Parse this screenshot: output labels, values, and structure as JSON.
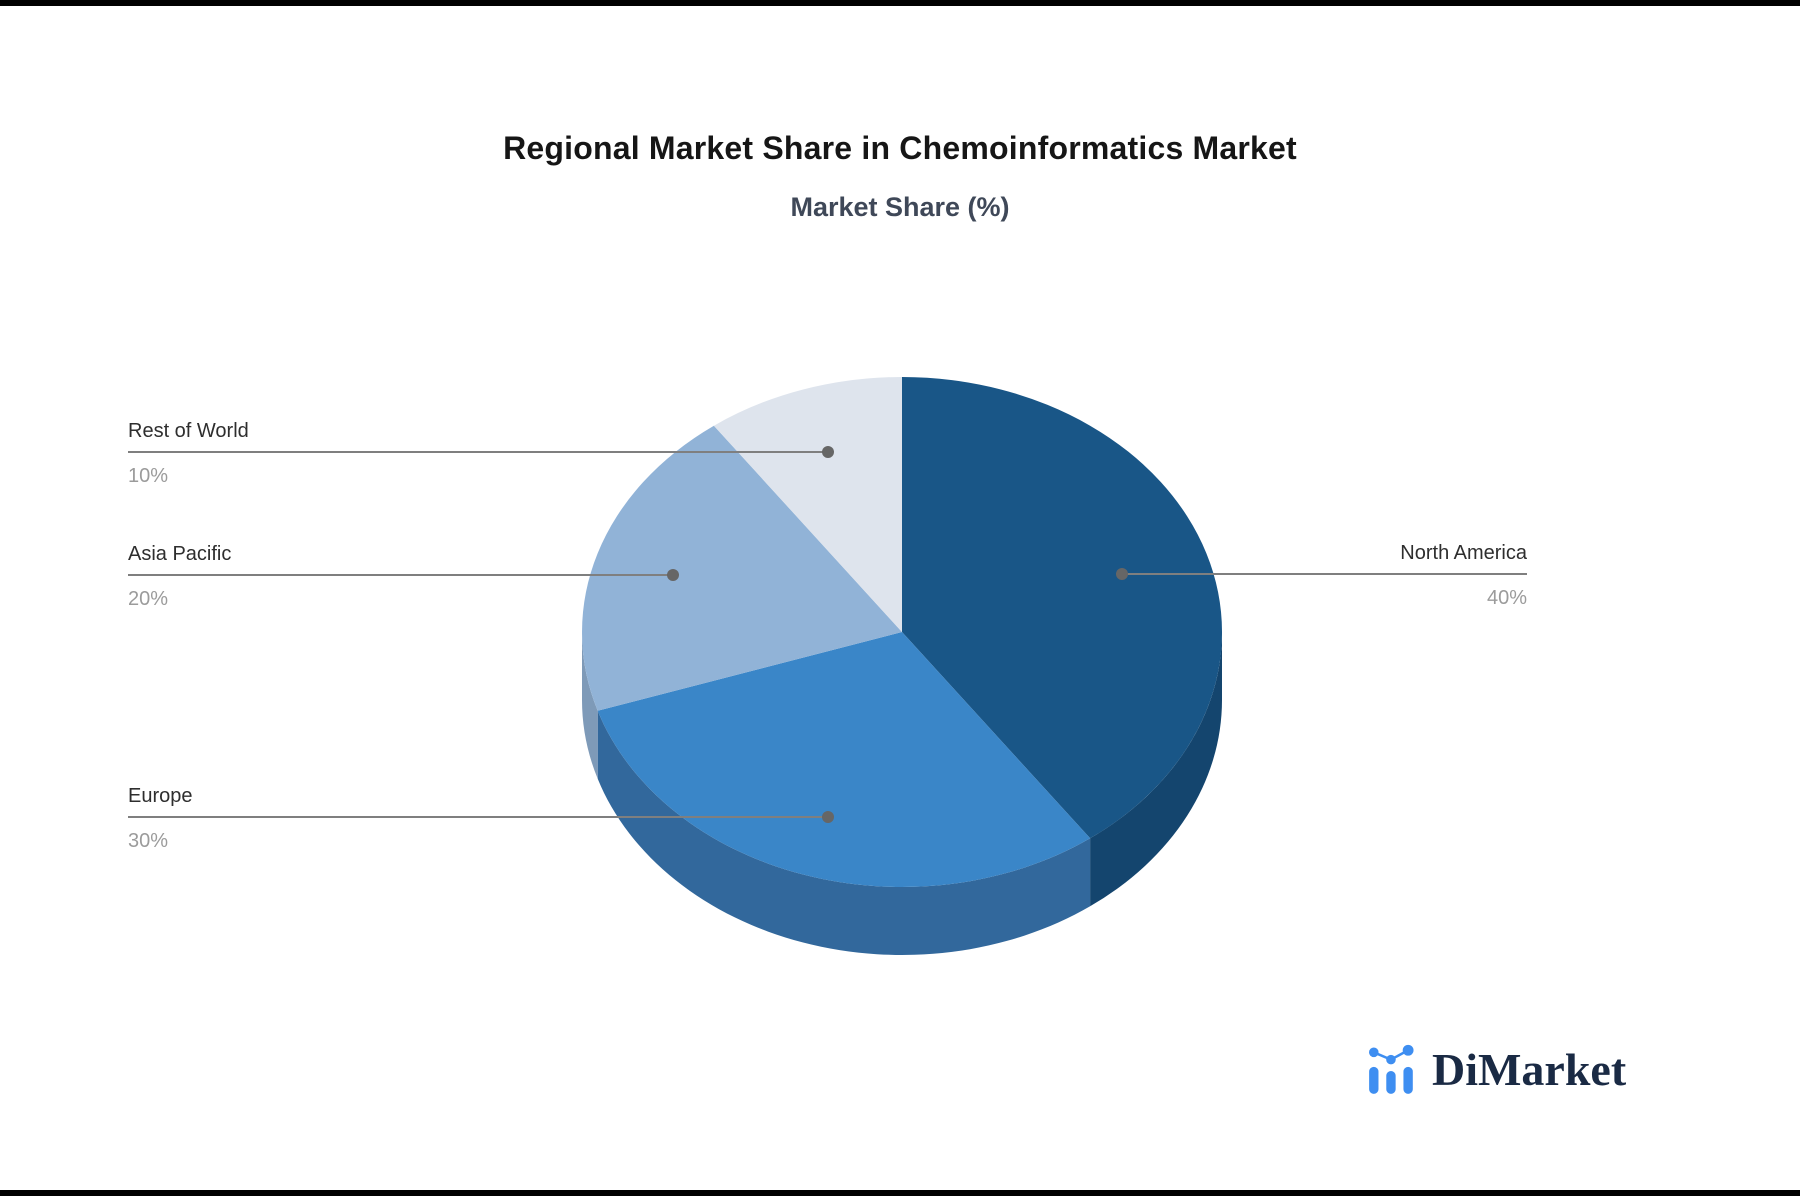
{
  "chart_data": {
    "type": "pie",
    "title": "Regional Market Share in Chemoinformatics Market",
    "subtitle": "Market Share (%)",
    "style": "3d",
    "start_angle": "12-oclock, clockwise",
    "legend_position": "leader-line callouts (left and right)",
    "slices": [
      {
        "label": "North America",
        "value": 40,
        "pct_label": "40%",
        "color": "#195687",
        "side_color": "#14456e",
        "label_side": "right"
      },
      {
        "label": "Europe",
        "value": 30,
        "pct_label": "30%",
        "color": "#3a86c8",
        "side_color": "#32689c",
        "label_side": "left"
      },
      {
        "label": "Asia Pacific",
        "value": 20,
        "pct_label": "20%",
        "color": "#91b3d7",
        "side_color": "#7e9ab8",
        "label_side": "left"
      },
      {
        "label": "Rest of World",
        "value": 10,
        "pct_label": "10%",
        "color": "#dee4ed",
        "side_color": "#c3cddd",
        "label_side": "left"
      }
    ],
    "colors": {
      "title_text": "#161616",
      "subtitle_text": "#3f4858",
      "label_text": "#2e2e2e",
      "pct_text": "#9b9b9b",
      "leader_line": "#7f7f7f",
      "leader_dot": "#666666",
      "background": "#ffffff"
    }
  },
  "branding": {
    "logo_text": "DiMarket",
    "logo_text_color": "#1a2a44",
    "logo_icon": "bar-line-chart-icon",
    "logo_icon_color": "#3e8ef1"
  }
}
